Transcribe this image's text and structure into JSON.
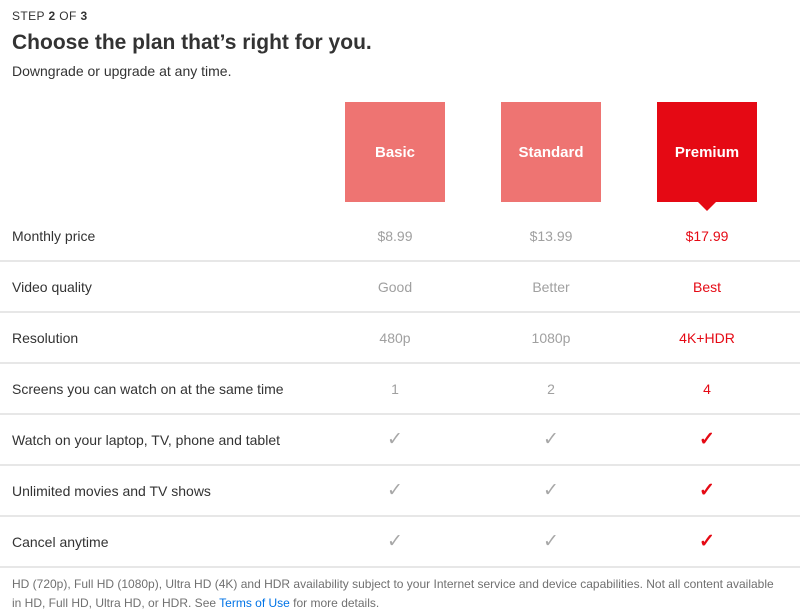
{
  "header": {
    "step_prefix": "STEP",
    "step_current": "2",
    "step_of": "OF",
    "step_total": "3",
    "title": "Choose the plan that’s right for you.",
    "subtitle": "Downgrade or upgrade at any time."
  },
  "plans": [
    {
      "name": "Basic",
      "selected": false
    },
    {
      "name": "Standard",
      "selected": false
    },
    {
      "name": "Premium",
      "selected": true
    }
  ],
  "table": {
    "rows": [
      {
        "label": "Monthly price",
        "values": [
          "$8.99",
          "$13.99",
          "$17.99"
        ]
      },
      {
        "label": "Video quality",
        "values": [
          "Good",
          "Better",
          "Best"
        ]
      },
      {
        "label": "Resolution",
        "values": [
          "480p",
          "1080p",
          "4K+HDR"
        ]
      },
      {
        "label": "Screens you can watch on at the same time",
        "values": [
          "1",
          "2",
          "4"
        ]
      },
      {
        "label": "Watch on your laptop, TV, phone and tablet",
        "values": [
          "✓",
          "✓",
          "✓"
        ]
      },
      {
        "label": "Unlimited movies and TV shows",
        "values": [
          "✓",
          "✓",
          "✓"
        ]
      },
      {
        "label": "Cancel anytime",
        "values": [
          "✓",
          "✓",
          "✓"
        ]
      }
    ]
  },
  "footer": {
    "text_before_link": "HD (720p), Full HD (1080p), Ultra HD (4K) and HDR availability subject to your Internet service and device capabilities. Not all content available in HD, Full HD, Ultra HD, or HDR. See ",
    "link_text": "Terms of Use",
    "text_after_link": " for more details."
  },
  "colors": {
    "accent": "#e50914",
    "plan_inactive": "#ee7472",
    "value_gray": "#a0a0a0",
    "link_blue": "#0073e6"
  }
}
